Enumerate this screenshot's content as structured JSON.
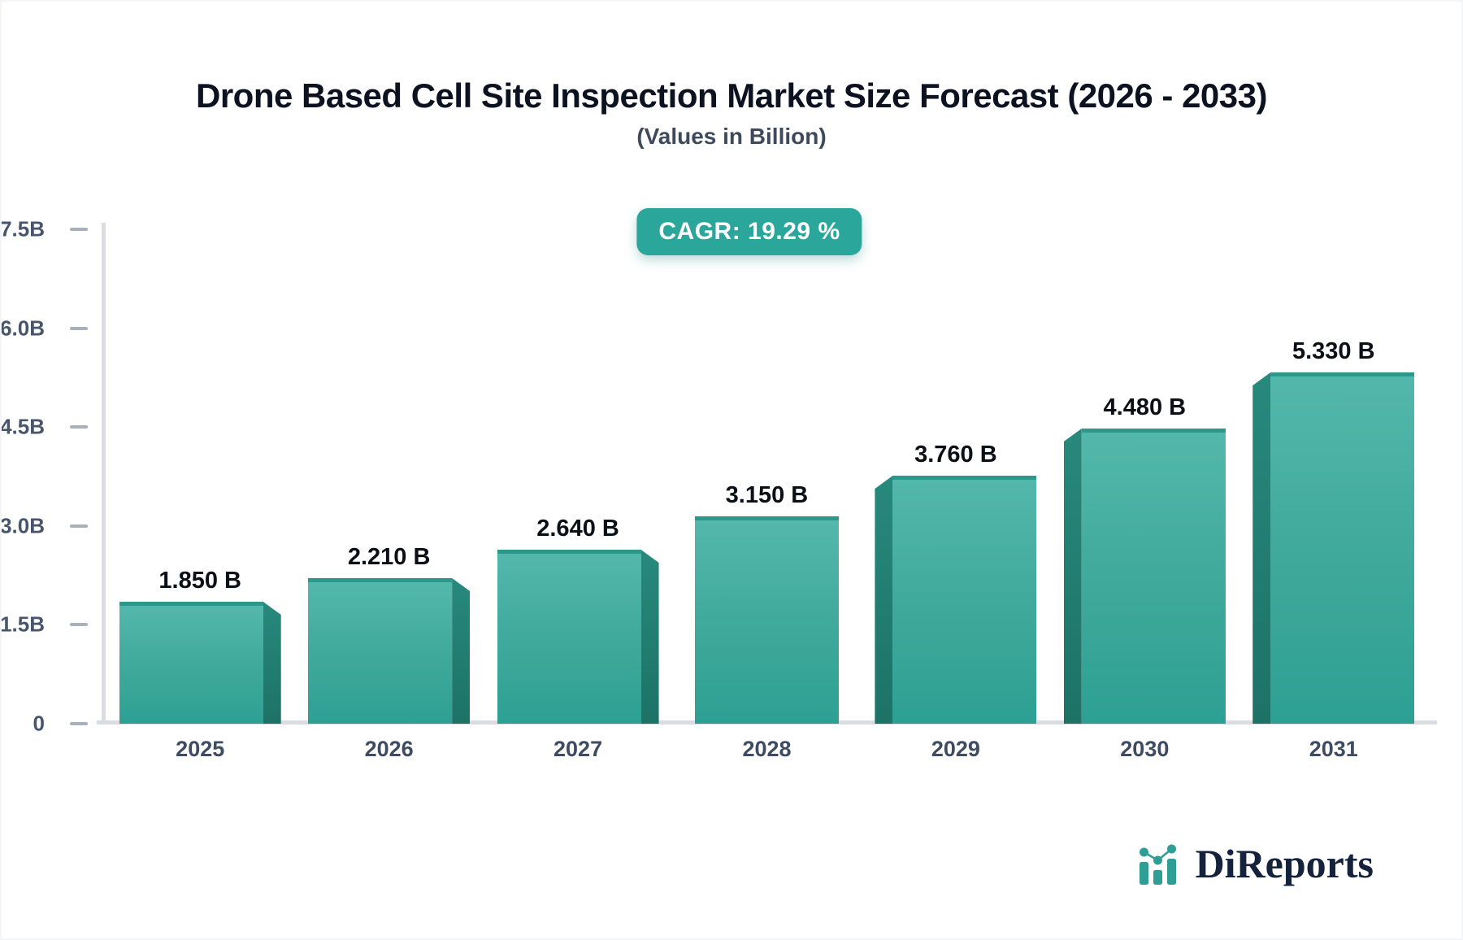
{
  "header": {
    "title": "Drone Based Cell Site Inspection Market Size Forecast (2026 - 2033)",
    "subtitle": "(Values in Billion)"
  },
  "cagr_badge": {
    "label": "CAGR: 19.29 %",
    "background": "#2ba69a",
    "text_color": "#ffffff"
  },
  "chart_data": {
    "type": "bar",
    "title": "Drone Based Cell Site Inspection Market Size Forecast (2026 - 2033)",
    "subtitle": "(Values in Billion)",
    "categories": [
      "2025",
      "2026",
      "2027",
      "2028",
      "2029",
      "2030",
      "2031"
    ],
    "values": [
      1.85,
      2.21,
      2.64,
      3.15,
      3.76,
      4.48,
      5.33
    ],
    "value_labels": [
      "1.850 B",
      "2.210 B",
      "2.640 B",
      "3.150 B",
      "3.760 B",
      "4.480 B",
      "5.330 B"
    ],
    "y_ticks": [
      {
        "label": "0",
        "value": 0
      },
      {
        "label": "1.5B",
        "value": 1.5
      },
      {
        "label": "3.0B",
        "value": 3.0
      },
      {
        "label": "4.5B",
        "value": 4.5
      },
      {
        "label": "6.0B",
        "value": 6.0
      },
      {
        "label": "7.5B",
        "value": 7.5
      }
    ],
    "ylim": [
      0,
      7.5
    ],
    "xlabel": "",
    "ylabel": "",
    "grid": false,
    "legend": "none",
    "bar_style": {
      "face_top": "#53b8ab",
      "face_bottom": "#2da093",
      "top_strip": "#2e978b",
      "side_top": "#27897c",
      "side_bottom": "#1d7266",
      "depth_effect": "3d-perspective-from-center"
    }
  },
  "logo": {
    "text": "DiReports",
    "icon": "mini-bar-line-chart-icon",
    "teal": "#2f9e94",
    "navy": "#15223b"
  }
}
